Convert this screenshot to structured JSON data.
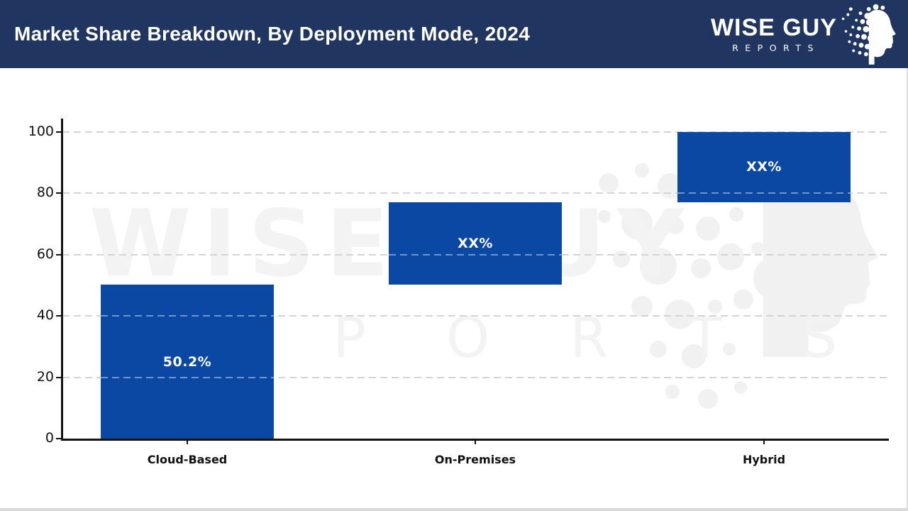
{
  "header": {
    "title": "Market Share Breakdown, By Deployment Mode, 2024",
    "logo": {
      "line1": "WISE GUY",
      "line2": "REPORTS"
    }
  },
  "watermark": {
    "line1": "WISE GUY",
    "line2": "R E P O R T S"
  },
  "chart_data": {
    "type": "bar",
    "variant": "floating-segment-waterfall",
    "title": "Market Share Breakdown, By Deployment Mode, 2024",
    "categories": [
      "Cloud-Based",
      "On-Premises",
      "Hybrid"
    ],
    "segments": [
      {
        "category": "Cloud-Based",
        "from": 0,
        "to": 50.2,
        "label": "50.2%"
      },
      {
        "category": "On-Premises",
        "from": 50.2,
        "to": 77.1,
        "label": "XX%"
      },
      {
        "category": "Hybrid",
        "from": 77.1,
        "to": 100,
        "label": "XX%"
      }
    ],
    "yticks": [
      0,
      20,
      40,
      60,
      80,
      100
    ],
    "ylim": [
      0,
      105
    ],
    "xlabel": "",
    "ylabel": "",
    "grid": "horizontal-dashed",
    "legend": "none",
    "bar_color": "#0b48a3",
    "bar_label_color": "#ffffff"
  },
  "colors": {
    "header_bg": "#20355f",
    "axis": "#141414",
    "grid": "#d4d4d4",
    "watermark": "#f3f3f3",
    "tick_label": "#111111"
  }
}
